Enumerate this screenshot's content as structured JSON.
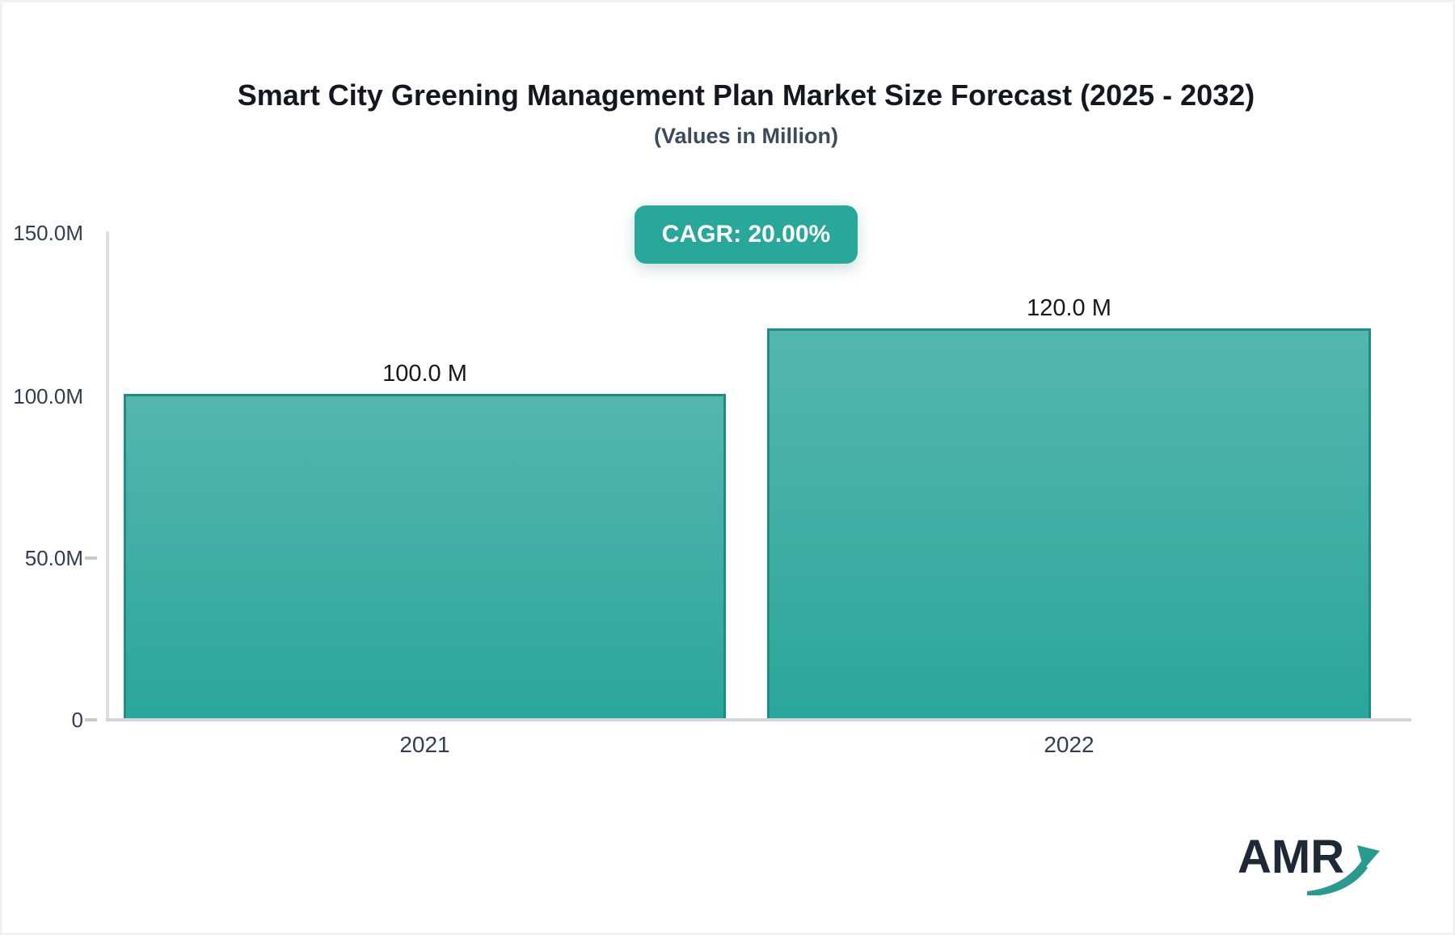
{
  "header": {
    "title": "Smart City Greening Management Plan Market Size Forecast (2025 - 2032)",
    "subtitle": "(Values in Million)",
    "cagr_label": "CAGR: 20.00%"
  },
  "chart_data": {
    "type": "bar",
    "title": "Smart City Greening Management Plan Market Size Forecast (2025 - 2032)",
    "subtitle": "(Values in Million)",
    "unit": "Million",
    "cagr_percent": 20.0,
    "categories": [
      "2021",
      "2022"
    ],
    "values": [
      100.0,
      120.0
    ],
    "value_labels": [
      "100.0 M",
      "120.0 M"
    ],
    "xlabel": "",
    "ylabel": "",
    "ylim": [
      0,
      150
    ],
    "y_tick_values": [
      150,
      100,
      50,
      0
    ],
    "y_tick_labels": [
      "150.0M",
      "100.0M",
      "50.0M",
      "0"
    ],
    "grid": false,
    "legend": false
  },
  "logo": {
    "text": "AMR",
    "icon": "trending-up-arrow-icon"
  },
  "colors": {
    "accent": "#2aa79b",
    "bar-top": "#55b6ad",
    "bar-bottom": "#2aa69a",
    "bar-border": "#1e8e84",
    "title": "#131820",
    "subtitle": "#3d4a5c",
    "axis-label": "#323e4e",
    "axis-line": "#dcdfe3",
    "logo": "#1e2935",
    "logo-arrow": "#2a9a91"
  }
}
